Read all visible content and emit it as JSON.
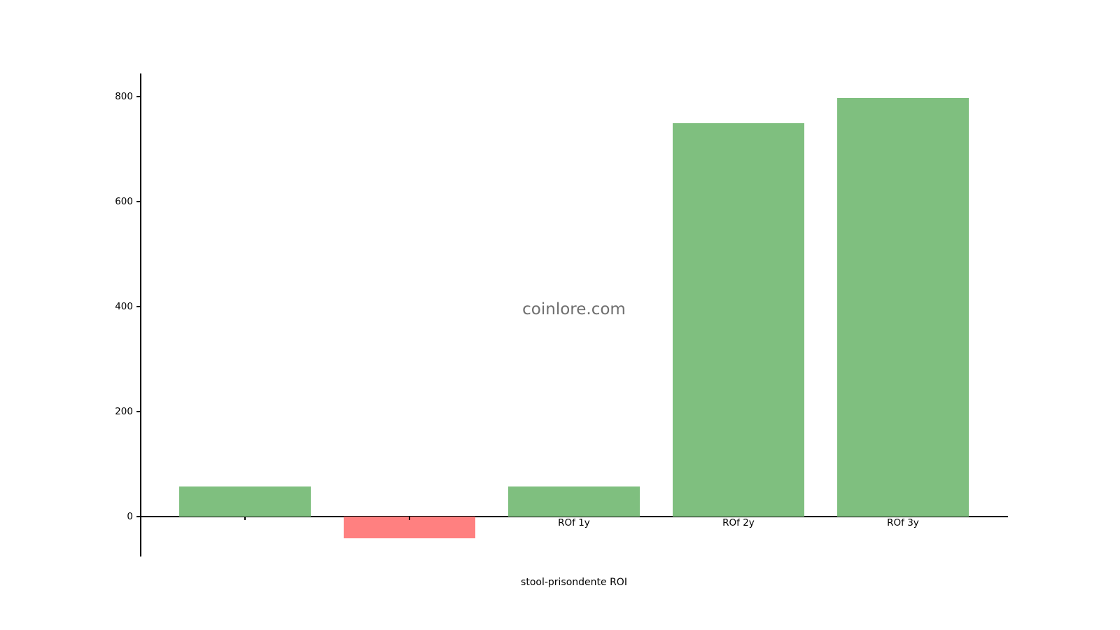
{
  "watermark": "coinlore.com",
  "chart_data": {
    "type": "bar",
    "categories": [
      "",
      "",
      "ROf 1y",
      "ROf 2y",
      "ROf 3y"
    ],
    "values": [
      57,
      -41,
      57,
      749,
      798
    ],
    "title": "",
    "xlabel": "stool-prisondente ROI",
    "ylabel": "",
    "ylim": [
      -76,
      844
    ],
    "yticks": [
      0,
      200,
      400,
      600,
      800
    ],
    "grid": false,
    "legend": null,
    "colors": {
      "positive": "#7fbf7f",
      "negative": "#ff8080",
      "axis": "#000000",
      "watermark": "#6e6e6e"
    },
    "watermark": "coinlore.com"
  }
}
